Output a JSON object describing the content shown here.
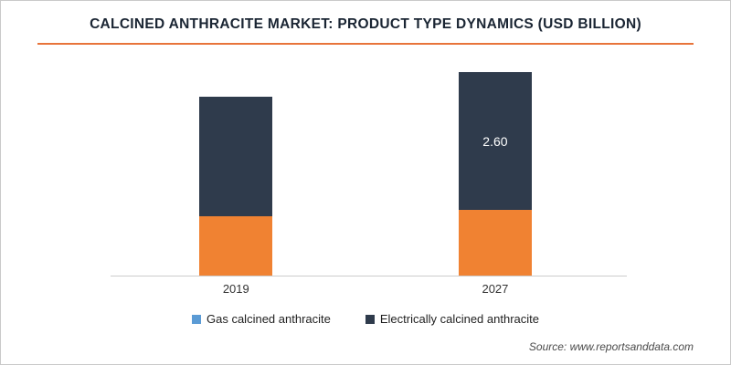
{
  "title": "CALCINED ANTHRACITE MARKET: PRODUCT TYPE DYNAMICS (USD BILLION)",
  "source": "Source: www.reportsanddata.com",
  "accent_color": "#e8743b",
  "chart_data": {
    "type": "bar",
    "stacked": true,
    "title": "CALCINED ANTHRACITE MARKET: PRODUCT TYPE DYNAMICS (USD BILLION)",
    "categories": [
      "2019",
      "2027"
    ],
    "series": [
      {
        "name": "Gas calcined anthracite",
        "values": [
          1.12,
          1.24
        ],
        "bar_color": "#f08232",
        "legend_color": "#5b9bd5"
      },
      {
        "name": "Electrically calcined anthracite",
        "values": [
          2.26,
          2.6
        ],
        "bar_color": "#2f3b4c",
        "legend_color": "#2f3b4c"
      }
    ],
    "data_labels": [
      {
        "category": "2027",
        "series_index": 1,
        "text": "2.60"
      }
    ],
    "xlabel": "",
    "ylabel": "",
    "ylim": [
      0,
      4
    ],
    "grid": false,
    "legend_position": "bottom"
  }
}
